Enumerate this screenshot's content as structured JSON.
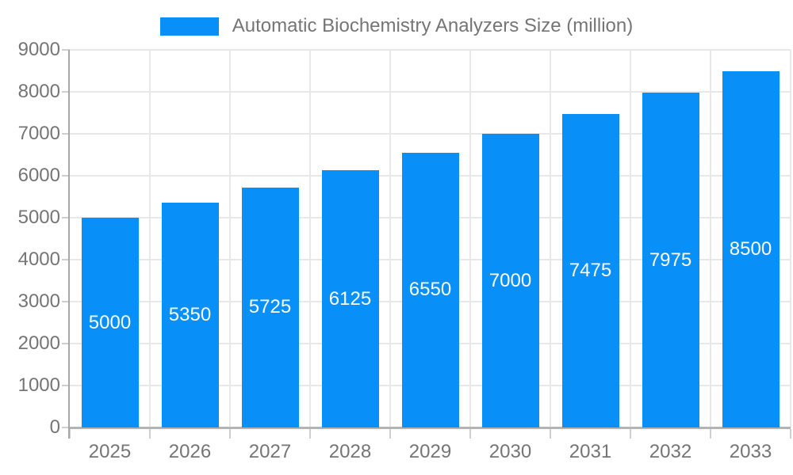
{
  "chart_data": {
    "type": "bar",
    "title": "Automatic Biochemistry Analyzers Size (million)",
    "categories": [
      "2025",
      "2026",
      "2027",
      "2028",
      "2029",
      "2030",
      "2031",
      "2032",
      "2033"
    ],
    "values": [
      5000,
      5350,
      5725,
      6125,
      6550,
      7000,
      7475,
      7975,
      8500
    ],
    "series": [
      {
        "name": "Automatic Biochemistry Analyzers Size (million)",
        "values": [
          5000,
          5350,
          5725,
          6125,
          6550,
          7000,
          7475,
          7975,
          8500
        ]
      }
    ],
    "xlabel": "",
    "ylabel": "",
    "ylim": [
      0,
      9000
    ],
    "ytick_step": 1000,
    "ytick_labels": [
      "0",
      "1000",
      "2000",
      "3000",
      "4000",
      "5000",
      "6000",
      "7000",
      "8000",
      "9000"
    ],
    "grid": true,
    "legend_position": "top",
    "bar_label_position": "inside-center",
    "colors": {
      "bar": "#0890F8",
      "bar_label": "#ffffff",
      "axis_text": "#757575",
      "gridline": "#e8e8e8",
      "axis_line": "#b3b3b3",
      "tick": "#cfcfcf",
      "background": "#ffffff"
    }
  }
}
